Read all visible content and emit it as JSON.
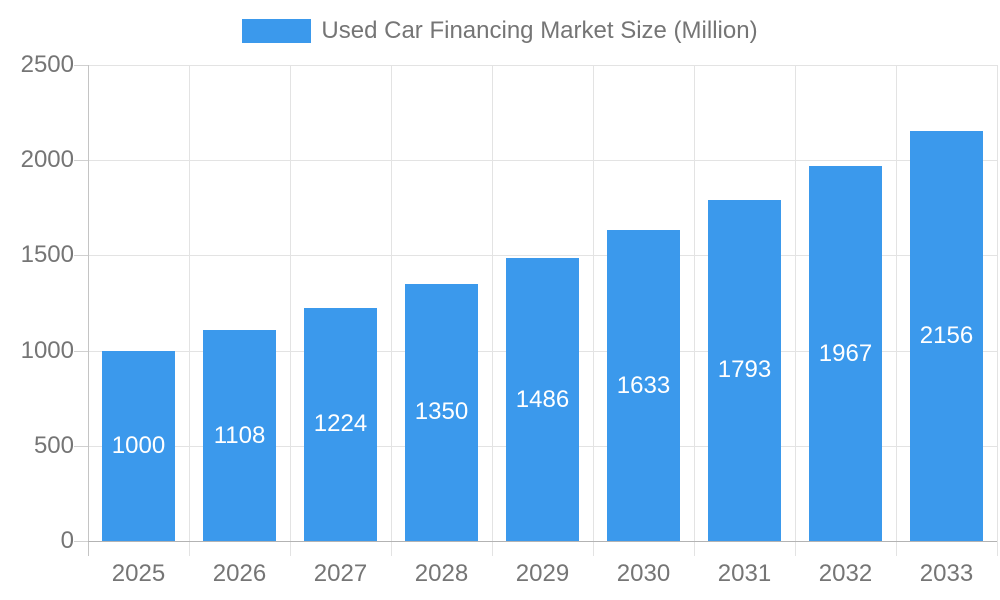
{
  "legend": {
    "label": "Used Car Financing Market Size (Million)"
  },
  "chart_data": {
    "type": "bar",
    "title": "Used Car Financing Market Size (Million)",
    "categories": [
      "2025",
      "2026",
      "2027",
      "2028",
      "2029",
      "2030",
      "2031",
      "2032",
      "2033"
    ],
    "values": [
      1000,
      1108,
      1224,
      1350,
      1486,
      1633,
      1793,
      1967,
      2156
    ],
    "xlabel": "",
    "ylabel": "",
    "ylim": [
      0,
      2500
    ],
    "yticks": [
      0,
      500,
      1000,
      1500,
      2000,
      2500
    ],
    "grid": true,
    "legend_position": "top-center",
    "bar_color": "#3b99ec",
    "bar_label_color": "#ffffff",
    "axis_text_color": "#757575",
    "grid_color": "#e3e3e3",
    "axis_line_color": "#b3b3b3"
  }
}
